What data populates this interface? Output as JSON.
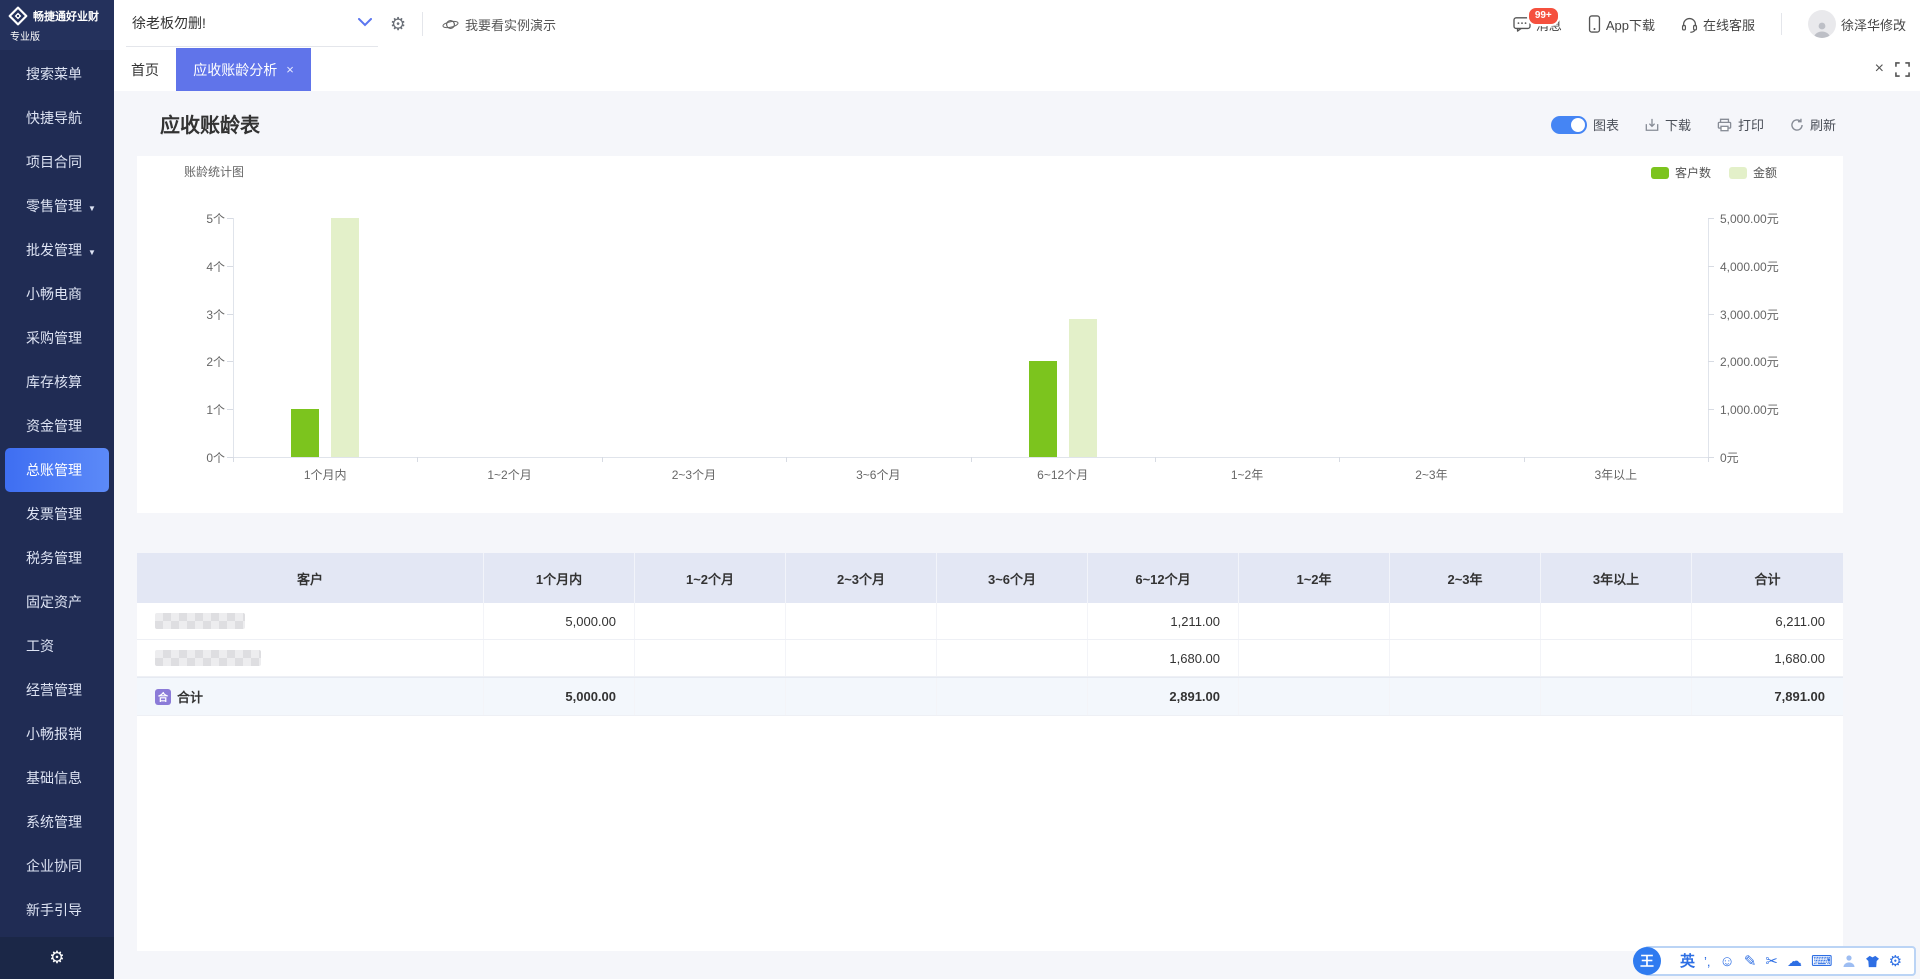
{
  "brand": {
    "name": "畅捷通好业财",
    "edition": "专业版"
  },
  "sidebar": {
    "items": [
      {
        "label": "搜索菜单",
        "active": false,
        "has_arrow": false
      },
      {
        "label": "快捷导航",
        "active": false,
        "has_arrow": false
      },
      {
        "label": "项目合同",
        "active": false,
        "has_arrow": false
      },
      {
        "label": "零售管理",
        "active": false,
        "has_arrow": true
      },
      {
        "label": "批发管理",
        "active": false,
        "has_arrow": true
      },
      {
        "label": "小畅电商",
        "active": false,
        "has_arrow": false
      },
      {
        "label": "采购管理",
        "active": false,
        "has_arrow": false
      },
      {
        "label": "库存核算",
        "active": false,
        "has_arrow": false
      },
      {
        "label": "资金管理",
        "active": false,
        "has_arrow": false
      },
      {
        "label": "总账管理",
        "active": true,
        "has_arrow": false
      },
      {
        "label": "发票管理",
        "active": false,
        "has_arrow": false
      },
      {
        "label": "税务管理",
        "active": false,
        "has_arrow": false
      },
      {
        "label": "固定资产",
        "active": false,
        "has_arrow": false
      },
      {
        "label": "工资",
        "active": false,
        "has_arrow": false
      },
      {
        "label": "经营管理",
        "active": false,
        "has_arrow": false
      },
      {
        "label": "小畅报销",
        "active": false,
        "has_arrow": false
      },
      {
        "label": "基础信息",
        "active": false,
        "has_arrow": false
      },
      {
        "label": "系统管理",
        "active": false,
        "has_arrow": false
      },
      {
        "label": "企业协同",
        "active": false,
        "has_arrow": false
      },
      {
        "label": "新手引导",
        "active": false,
        "has_arrow": false
      }
    ]
  },
  "topbar": {
    "company": "徐老板勿删!",
    "demo": "我要看实例演示",
    "messages": "消息",
    "messages_badge": "99+",
    "app_download": "App下载",
    "support": "在线客服",
    "user": "徐泽华修改"
  },
  "tabs": [
    {
      "label": "首页",
      "active": false,
      "closable": false
    },
    {
      "label": "应收账龄分析",
      "active": true,
      "closable": true
    }
  ],
  "page": {
    "title": "应收账龄表",
    "toggle_label": "图表",
    "download_label": "下载",
    "print_label": "打印",
    "refresh_label": "刷新"
  },
  "chart_data": {
    "type": "bar",
    "title": "账龄统计图",
    "categories": [
      "1个月内",
      "1~2个月",
      "2~3个月",
      "3~6个月",
      "6~12个月",
      "1~2年",
      "2~3年",
      "3年以上"
    ],
    "series": [
      {
        "name": "客户数",
        "axis": "left",
        "color": "#7CC41E",
        "values": [
          1,
          0,
          0,
          0,
          2,
          0,
          0,
          0
        ]
      },
      {
        "name": "金额",
        "axis": "right",
        "color": "#E3F0C9",
        "values": [
          5000,
          0,
          0,
          0,
          2891,
          0,
          0,
          0
        ]
      }
    ],
    "left_axis": {
      "max": 5,
      "ticks": [
        "5个",
        "4个",
        "3个",
        "2个",
        "1个",
        "0个"
      ]
    },
    "right_axis": {
      "max": 5000,
      "ticks": [
        "5,000.00元",
        "4,000.00元",
        "3,000.00元",
        "2,000.00元",
        "1,000.00元",
        "0元"
      ]
    },
    "legend_position": "top-right",
    "grid": false
  },
  "table": {
    "columns": [
      "客户",
      "1个月内",
      "1~2个月",
      "2~3个月",
      "3~6个月",
      "6~12个月",
      "1~2年",
      "2~3年",
      "3年以上",
      "合计"
    ],
    "rows": [
      {
        "customer_redacted": true,
        "values": [
          "5,000.00",
          "",
          "",
          "",
          "1,211.00",
          "",
          "",
          "",
          "6,211.00"
        ]
      },
      {
        "customer_redacted": true,
        "values": [
          "",
          "",
          "",
          "",
          "1,680.00",
          "",
          "",
          "",
          "1,680.00"
        ]
      }
    ],
    "total": {
      "label": "合计",
      "values": [
        "5,000.00",
        "",
        "",
        "",
        "2,891.00",
        "",
        "",
        "",
        "7,891.00"
      ]
    }
  },
  "window_controls": {
    "close": "×"
  },
  "ime": {
    "lang": "英",
    "punct": "’,",
    "wang": "王"
  },
  "colors": {
    "sidebar_bg": "#202C54",
    "active_item": "#4A7BF3",
    "tab_active": "#6074EA",
    "accent_blue": "#4585F4",
    "badge_red": "#F5503E",
    "bar_green": "#7CC41E",
    "bar_light_green": "#E3F0C9",
    "table_header_bg": "#E3E7F4",
    "total_row_bg": "#F3F7FC"
  }
}
